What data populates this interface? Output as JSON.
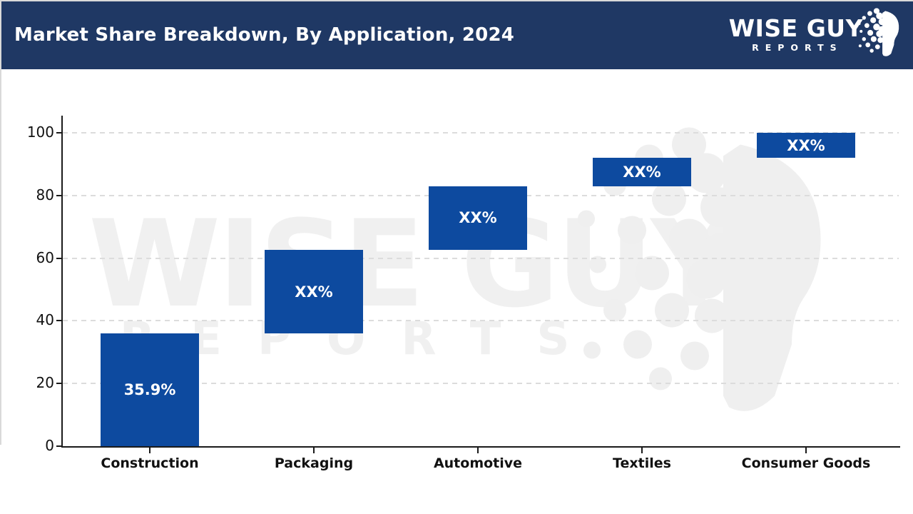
{
  "header": {
    "title": "Market Share Breakdown, By Application, 2024",
    "bg_color": "#1f3864",
    "logo": {
      "wordmark": "WISE GUY",
      "subtext": "REPORTS"
    }
  },
  "watermark": {
    "wordmark": "WISE GUY",
    "subtext": "REPORTS"
  },
  "chart_data": {
    "type": "bar",
    "subtype": "waterfall",
    "title": "Market Share Breakdown, By Application, 2024",
    "categories": [
      "Construction",
      "Packaging",
      "Automotive",
      "Textiles",
      "Consumer Goods"
    ],
    "segments": [
      {
        "category": "Construction",
        "start": 0,
        "end": 35.9,
        "label": "35.9%"
      },
      {
        "category": "Packaging",
        "start": 35.9,
        "end": 62.7,
        "label": "XX%"
      },
      {
        "category": "Automotive",
        "start": 62.7,
        "end": 82.9,
        "label": "XX%"
      },
      {
        "category": "Textiles",
        "start": 82.9,
        "end": 92.0,
        "label": "XX%"
      },
      {
        "category": "Consumer Goods",
        "start": 92.0,
        "end": 100.0,
        "label": "XX%"
      }
    ],
    "yticks": [
      0,
      20,
      40,
      60,
      80,
      100
    ],
    "ylim": [
      0,
      105
    ],
    "grid": true,
    "grid_style": "dashed",
    "bar_color": "#0d4a9f",
    "bar_label_color": "#ffffff",
    "legend": false
  }
}
